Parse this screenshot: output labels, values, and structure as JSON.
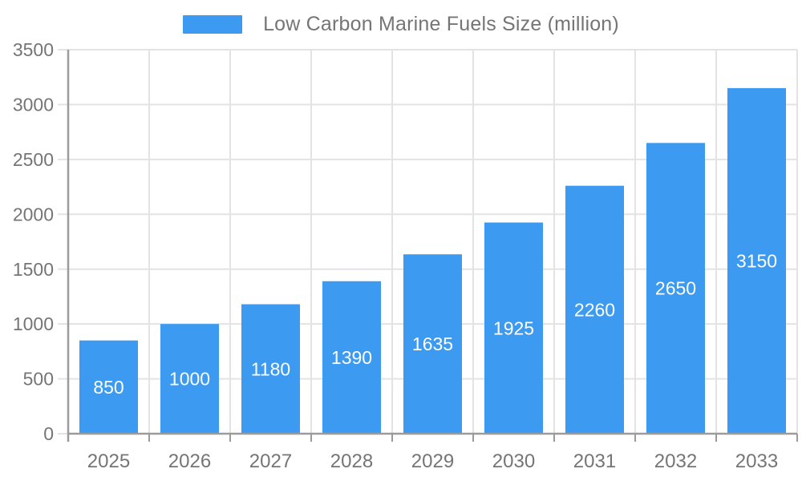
{
  "chart_data": {
    "type": "bar",
    "title": "",
    "legend": "Low Carbon Marine Fuels Size (million)",
    "legend_position": "top",
    "categories": [
      "2025",
      "2026",
      "2027",
      "2028",
      "2029",
      "2030",
      "2031",
      "2032",
      "2033"
    ],
    "values": [
      850,
      1000,
      1180,
      1390,
      1635,
      1925,
      2260,
      2650,
      3150
    ],
    "xlabel": "",
    "ylabel": "",
    "ylim": [
      0,
      3500
    ],
    "ytick_step": 500,
    "ytick_labels": [
      "0",
      "500",
      "1000",
      "1500",
      "2000",
      "2500",
      "3000",
      "3500"
    ],
    "grid": true,
    "bar_labels_inside": true,
    "colors": {
      "bar": "#3C9AF0",
      "bar_label": "#FFFFFF",
      "axis_label": "#757575",
      "grid_line": "#E3E3E3",
      "axis_line": "#9B9B9B",
      "legend_text": "#757575",
      "background": "#FFFFFF"
    }
  }
}
